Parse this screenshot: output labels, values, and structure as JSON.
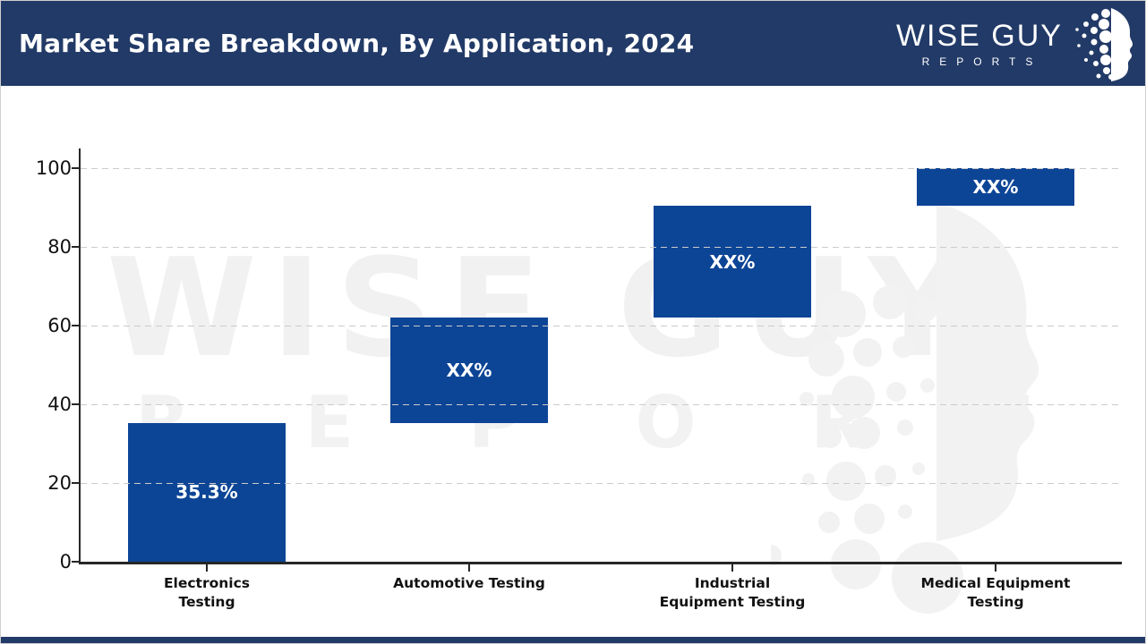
{
  "header": {
    "title": "Market Share Breakdown, By Application, 2024",
    "bg_color": "#223a67",
    "logo": {
      "line1": "WISE GUY",
      "line2": "REPORTS"
    }
  },
  "watermark": {
    "line1": "WISE GUY",
    "line2": "R E P O R T S"
  },
  "chart_data": {
    "type": "bar",
    "subtype": "waterfall",
    "title": "Market Share Breakdown, By Application, 2024",
    "categories": [
      "Electronics Testing",
      "Automotive Testing",
      "Industrial Equipment Testing",
      "Medical Equipment Testing"
    ],
    "x_tick_lines": [
      "Electronics\nTesting",
      "Automotive Testing",
      "Industrial\nEquipment Testing",
      "Medical Equipment\nTesting"
    ],
    "segments": [
      {
        "category": "Electronics Testing",
        "start": 0,
        "end": 35.3,
        "label": "35.3%"
      },
      {
        "category": "Automotive Testing",
        "start": 35.3,
        "end": 62,
        "label": "XX%"
      },
      {
        "category": "Industrial Equipment Testing",
        "start": 62,
        "end": 90.5,
        "label": "XX%"
      },
      {
        "category": "Medical Equipment Testing",
        "start": 90.5,
        "end": 100,
        "label": "XX%"
      }
    ],
    "ylim": [
      0,
      100
    ],
    "yticks": [
      0,
      20,
      40,
      60,
      80,
      100
    ],
    "xlabel": "",
    "ylabel": "",
    "grid": {
      "axis": "y",
      "style": "dashed",
      "color": "#cbcbcb",
      "drawn_over_bars": true
    },
    "legend": "none",
    "bar_color": "#0d4596",
    "bar_label_color": "#ffffff"
  }
}
